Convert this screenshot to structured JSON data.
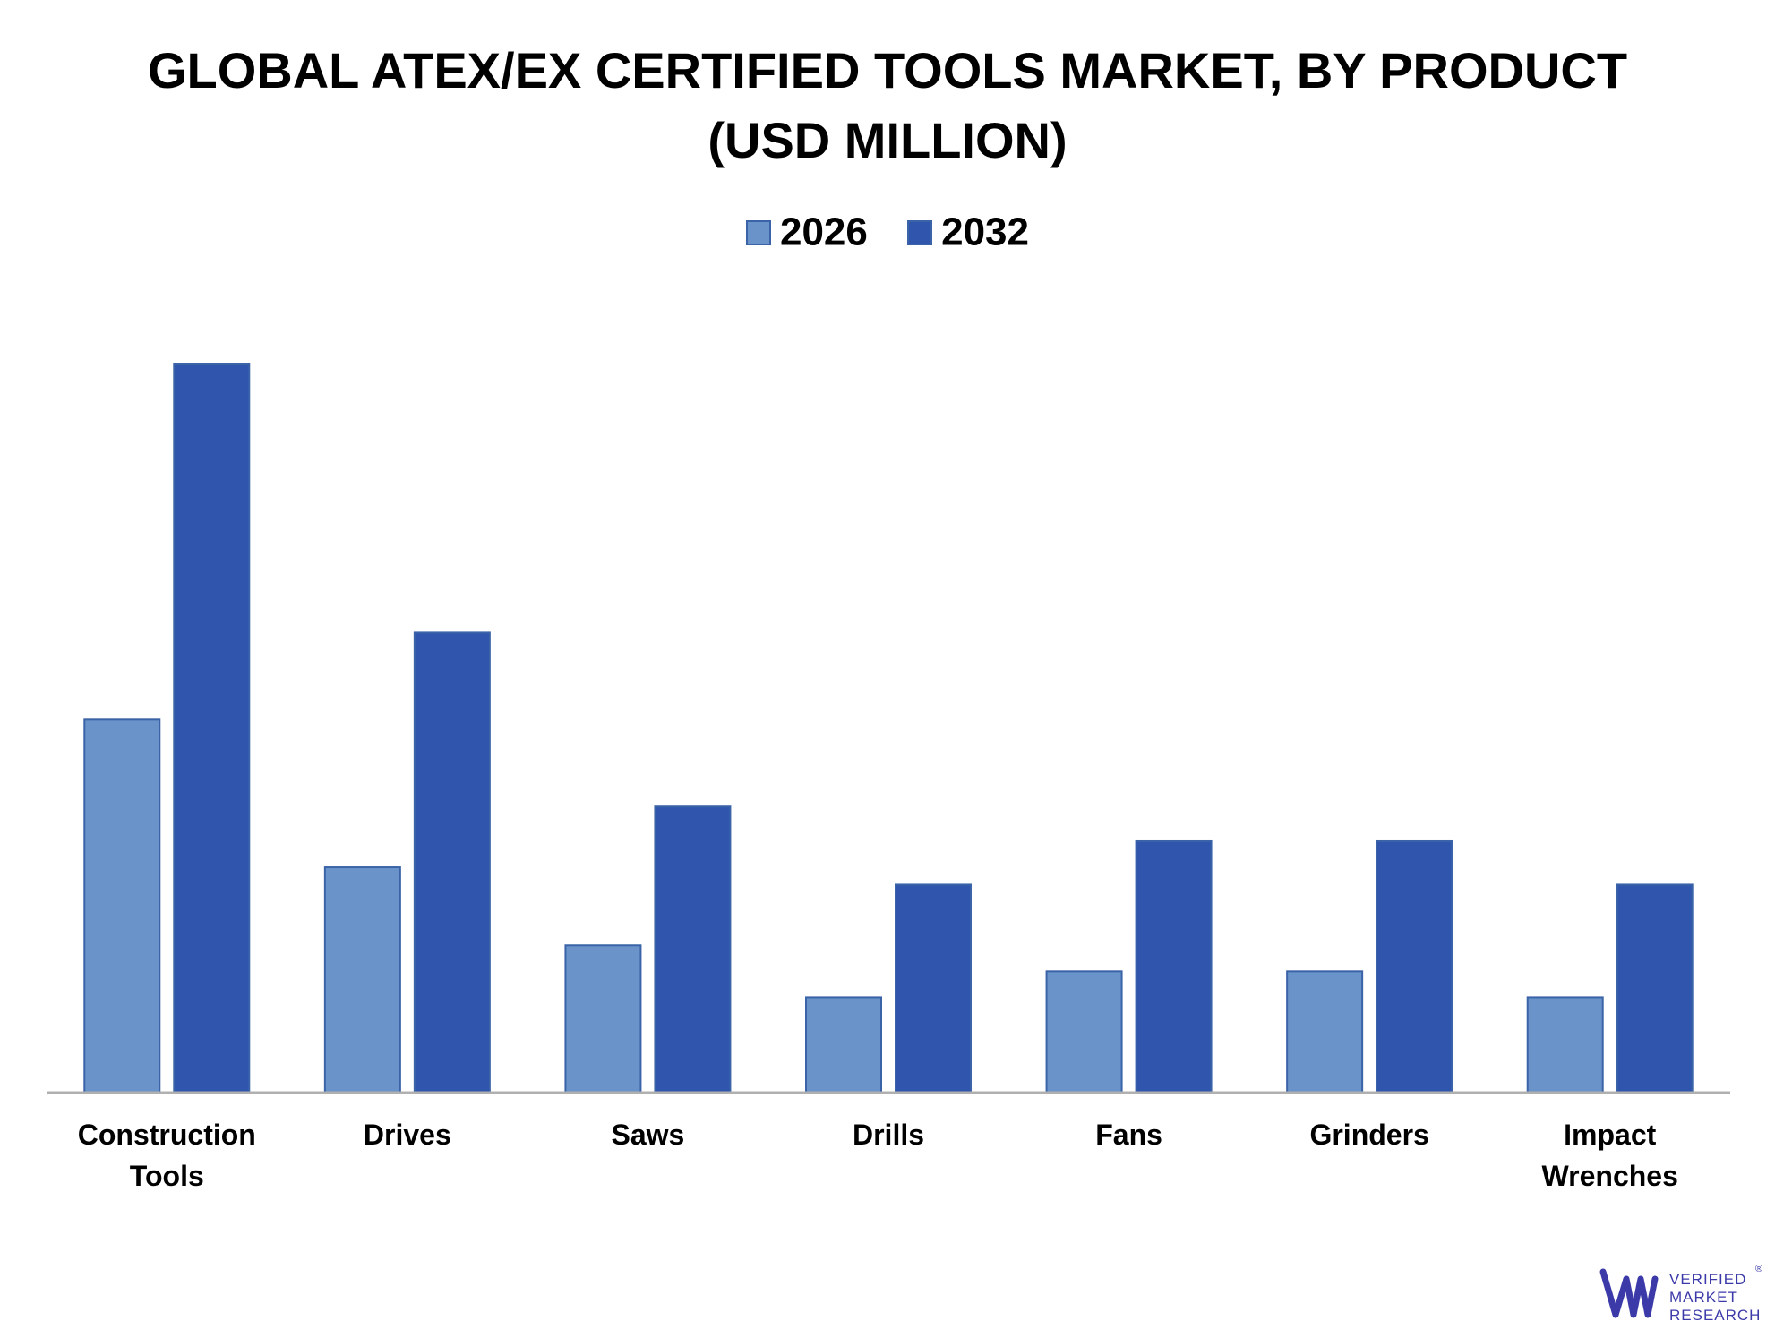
{
  "chart_data": {
    "type": "bar",
    "title": "GLOBAL ATEX/EX CERTIFIED TOOLS MARKET, BY PRODUCT (USD MILLION)",
    "title_lines": [
      "GLOBAL ATEX/EX CERTIFIED TOOLS MARKET, BY PRODUCT",
      "(USD MILLION)"
    ],
    "categories": [
      "Construction Tools",
      "Drives",
      "Saws",
      "Drills",
      "Fans",
      "Grinders",
      "Impact Wrenches"
    ],
    "category_lines": [
      [
        "Construction",
        "Tools"
      ],
      [
        "Drives"
      ],
      [
        "Saws"
      ],
      [
        "Drills"
      ],
      [
        "Fans"
      ],
      [
        "Grinders"
      ],
      [
        "Impact",
        "Wrenches"
      ]
    ],
    "series": [
      {
        "name": "2026",
        "values": [
          43,
          26,
          17,
          11,
          14,
          14,
          11
        ]
      },
      {
        "name": "2032",
        "values": [
          84,
          53,
          33,
          24,
          29,
          29,
          24
        ]
      }
    ],
    "xlabel": "",
    "ylabel": "",
    "ylim": [
      0,
      84
    ],
    "grid": false,
    "legend_position": "top-center",
    "colors": {
      "2026": "#6a94c9",
      "2032": "#2f55ad",
      "axis": "#b0b0b0",
      "bar_border": "#3a63a8"
    }
  },
  "logo": {
    "line1": "VERIFIED",
    "line2": "MARKET",
    "line3": "RESEARCH",
    "mark": "®",
    "color": "#3b3aa8"
  }
}
